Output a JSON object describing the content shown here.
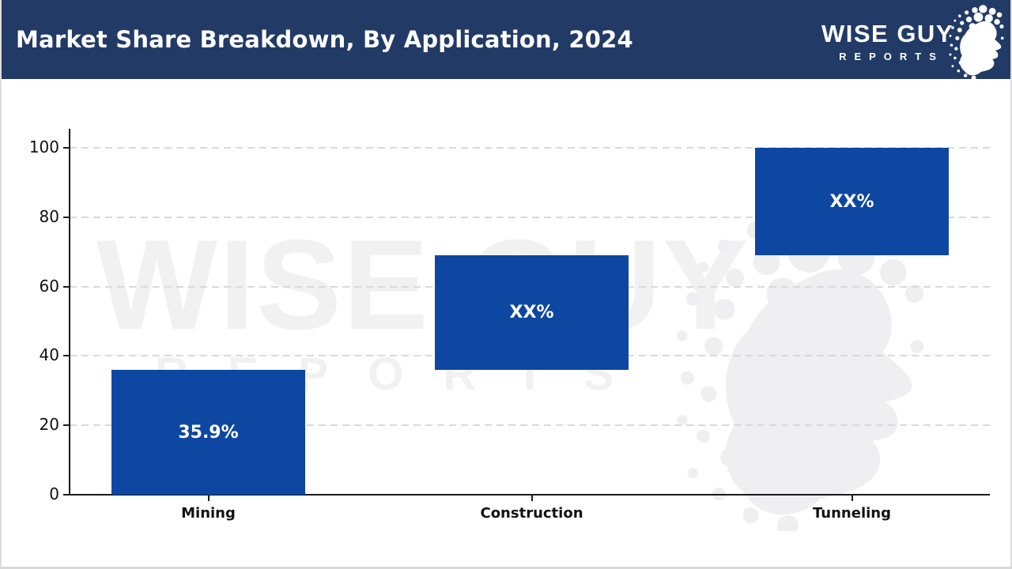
{
  "header": {
    "title": "Market Share Breakdown, By Application, 2024",
    "logo": {
      "line1": "WISE GUY",
      "line2": "REPORTS",
      "face_icon": "dotted-face-profile"
    }
  },
  "watermark": {
    "line1": "WISE GUY",
    "line2": "REPORTS",
    "face_icon": "dotted-face-profile"
  },
  "colors": {
    "header_bg": "#223a66",
    "bar": "#0d47a1",
    "grid": "#d9d9d9",
    "axis": "#1a1a1a",
    "tick_text": "#111111",
    "bar_label_text": "#ffffff",
    "watermark": "#f1f1f2"
  },
  "chart_data": {
    "type": "bar",
    "subtype": "waterfall",
    "title": "Market Share Breakdown, By Application, 2024",
    "xlabel": "",
    "ylabel": "",
    "ylim": [
      0,
      100
    ],
    "yticks": [
      0,
      20,
      40,
      60,
      80,
      100
    ],
    "grid": "horizontal-dashed",
    "legend": "none",
    "categories": [
      "Mining",
      "Construction",
      "Tunneling"
    ],
    "series": [
      {
        "name": "Market Share (%)",
        "segments": [
          {
            "category": "Mining",
            "start": 0,
            "end": 35.9,
            "label": "35.9%"
          },
          {
            "category": "Construction",
            "start": 35.9,
            "end": 69.0,
            "label": "XX%"
          },
          {
            "category": "Tunneling",
            "start": 69.0,
            "end": 100,
            "label": "XX%"
          }
        ]
      }
    ]
  }
}
